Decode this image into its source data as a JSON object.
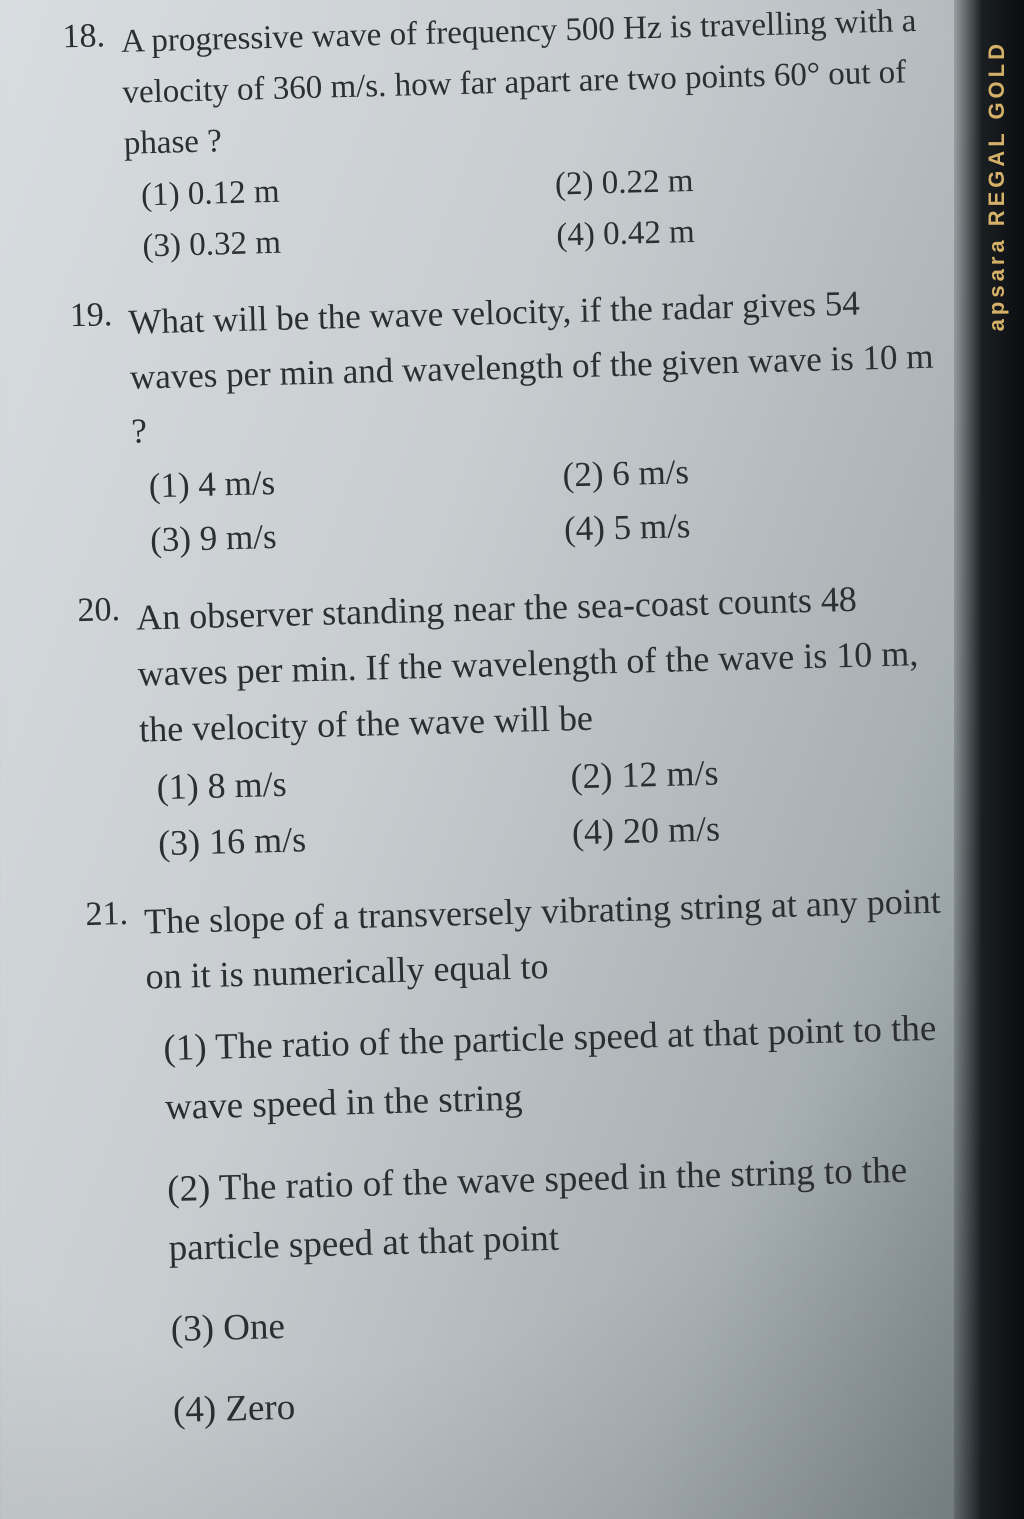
{
  "spine_label": "apsara REGAL GOLD",
  "questions": [
    {
      "number": "18.",
      "stem": "A progressive wave of frequency 500 Hz is travelling with a velocity of 360 m/s. how far apart are two points 60° out of phase ?",
      "options": [
        "(1) 0.12 m",
        "(2) 0.22 m",
        "(3) 0.32 m",
        "(4) 0.42 m"
      ],
      "layout": "grid"
    },
    {
      "number": "19.",
      "stem": "What will be the wave velocity, if the radar gives 54 waves per min and wavelength of the given wave is 10 m ?",
      "options": [
        "(1) 4 m/s",
        "(2) 6 m/s",
        "(3) 9 m/s",
        "(4) 5 m/s"
      ],
      "layout": "grid"
    },
    {
      "number": "20.",
      "stem": "An observer standing near the sea-coast counts 48 waves per min. If the wavelength of the wave is 10 m, the velocity of the wave will be",
      "options": [
        "(1) 8 m/s",
        "(2) 12 m/s",
        "(3) 16 m/s",
        "(4) 20 m/s"
      ],
      "layout": "grid"
    },
    {
      "number": "21.",
      "stem": "The slope of a transversely vibrating string at any point on it is numerically equal to",
      "options": [
        "(1) The ratio of the particle speed at that point to the wave speed in the string",
        "(2) The ratio of the wave speed in the string to the particle speed at that point",
        "(3) One",
        "(4) Zero"
      ],
      "layout": "long"
    }
  ]
}
